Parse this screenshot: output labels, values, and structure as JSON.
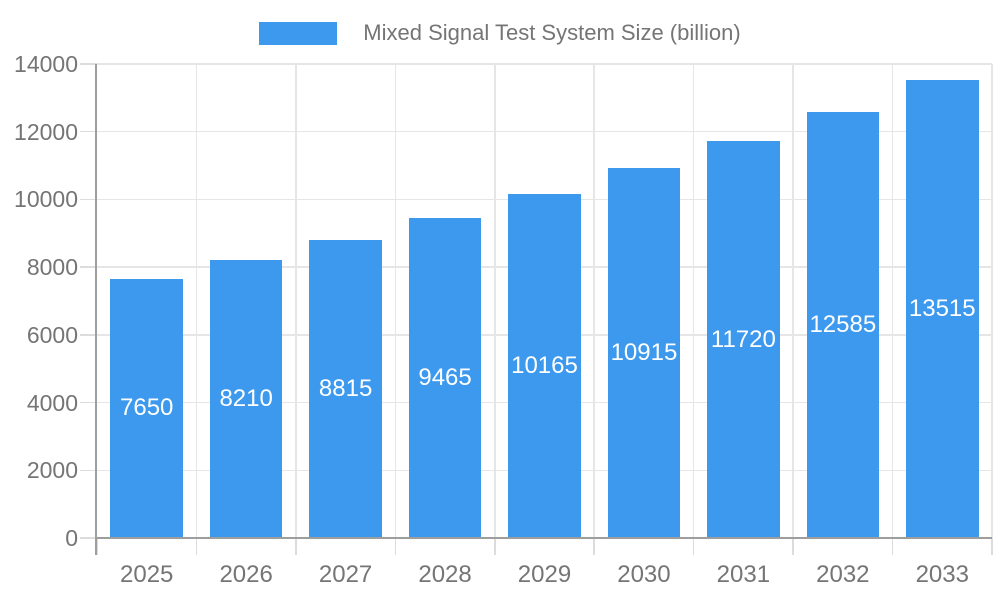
{
  "chart_data": {
    "type": "bar",
    "title": "Mixed Signal Test System Size (billion)",
    "legend": {
      "label": "Mixed Signal Test System Size (billion)",
      "position": "top"
    },
    "categories": [
      "2025",
      "2026",
      "2027",
      "2028",
      "2029",
      "2030",
      "2031",
      "2032",
      "2033"
    ],
    "series": [
      {
        "name": "Mixed Signal Test System Size (billion)",
        "values": [
          7650,
          8210,
          8815,
          9465,
          10165,
          10915,
          11720,
          12585,
          13515
        ]
      }
    ],
    "bar_value_labels": [
      "7650",
      "8210",
      "8815",
      "9465",
      "10165",
      "10915",
      "11720",
      "12585",
      "13515"
    ],
    "xlabel": "",
    "ylabel": "",
    "ylim": [
      0,
      14000
    ],
    "ytick_step": 2000,
    "ytick_labels": [
      "0",
      "2000",
      "4000",
      "6000",
      "8000",
      "10000",
      "12000",
      "14000"
    ],
    "grid": true,
    "colors": {
      "bar": "#3c99ee",
      "bar_value_text": "#ffffff",
      "axis_text": "#757575",
      "axis_line": "#9e9e9e",
      "grid_line": "#e6e6e6",
      "background": "#ffffff"
    }
  }
}
